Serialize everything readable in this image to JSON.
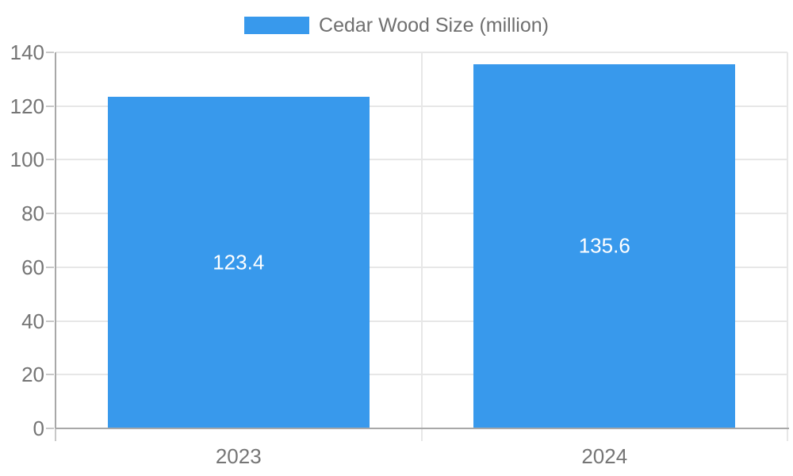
{
  "chart_data": {
    "type": "bar",
    "title": "",
    "xlabel": "",
    "ylabel": "",
    "categories": [
      "2023",
      "2024"
    ],
    "series": [
      {
        "name": "Cedar Wood Size (million)",
        "values": [
          123.4,
          135.6
        ],
        "color": "#3899ec"
      }
    ],
    "data_labels": [
      "123.4",
      "135.6"
    ],
    "ylim": [
      0,
      140
    ],
    "ytick_step": 20,
    "yticks": [
      0,
      20,
      40,
      60,
      80,
      100,
      120,
      140
    ],
    "grid": true,
    "legend": {
      "position": "top",
      "label": "Cedar Wood Size (million)"
    }
  },
  "colors": {
    "bar": "#3899ec",
    "background": "#ffffff",
    "axis_line": "#a8a8a8",
    "tick_mark": "#c8c8c8",
    "gridline": "#e7e7e7",
    "tick_text": "#757575",
    "legend_text": "#6f6f6f",
    "bar_label": "#ffffff"
  }
}
